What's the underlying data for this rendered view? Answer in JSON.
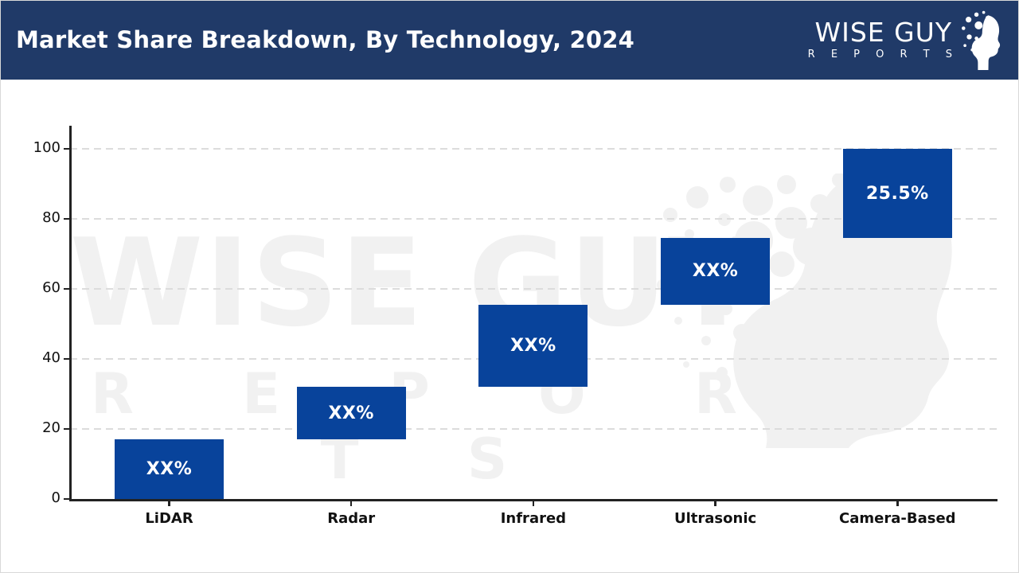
{
  "header": {
    "title": "Market Share Breakdown, By Technology, 2024",
    "logo": {
      "name": "WISE GUY REPORTS",
      "line1": "WISE GUY",
      "line2": "R E P O R T S"
    }
  },
  "watermark": {
    "line1": "WISE GUY",
    "line2": "R E P O R T S"
  },
  "colors": {
    "header_bg": "#203a68",
    "bar": "#08439b",
    "bar_label": "#ffffff",
    "axis": "#222222",
    "grid": "#dcdcdc",
    "tick_text": "#111111",
    "watermark": "#f1f1f1",
    "frame_border": "#d9d9d9"
  },
  "chart_data": {
    "type": "bar",
    "variant": "waterfall",
    "title": "Market Share Breakdown, By Technology, 2024",
    "categories": [
      "LiDAR",
      "Radar",
      "Infrared",
      "Ultrasonic",
      "Camera-Based"
    ],
    "segments": [
      {
        "category": "LiDAR",
        "start": 0,
        "end": 17,
        "label": "XX%"
      },
      {
        "category": "Radar",
        "start": 17,
        "end": 32,
        "label": "XX%"
      },
      {
        "category": "Infrared",
        "start": 32,
        "end": 55.5,
        "label": "XX%"
      },
      {
        "category": "Ultrasonic",
        "start": 55.5,
        "end": 74.5,
        "label": "XX%"
      },
      {
        "category": "Camera-Based",
        "start": 74.5,
        "end": 100,
        "label": "25.5%"
      }
    ],
    "xlabel": "",
    "ylabel": "",
    "ylim": [
      0,
      100
    ],
    "yticks": [
      0,
      20,
      40,
      60,
      80,
      100
    ],
    "grid": true,
    "legend": "none"
  }
}
